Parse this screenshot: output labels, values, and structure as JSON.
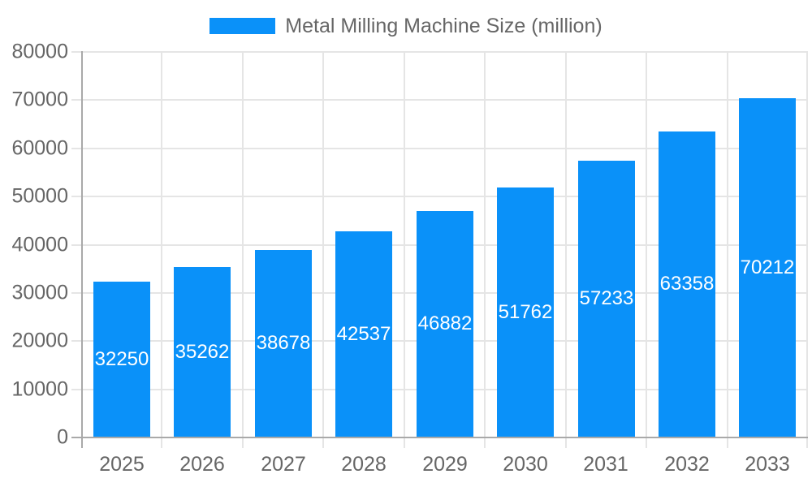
{
  "chart_data": {
    "type": "bar",
    "title": "Metal Milling Machine Size (million)",
    "legend": {
      "label": "Metal Milling Machine Size (million)",
      "position": "top"
    },
    "categories": [
      "2025",
      "2026",
      "2027",
      "2028",
      "2029",
      "2030",
      "2031",
      "2032",
      "2033"
    ],
    "values": [
      32250,
      35262,
      38678,
      42537,
      46882,
      51762,
      57233,
      63358,
      70212
    ],
    "xlabel": "",
    "ylabel": "",
    "ylim": [
      0,
      80000
    ],
    "yticks": [
      0,
      10000,
      20000,
      30000,
      40000,
      50000,
      60000,
      70000,
      80000
    ],
    "grid": true,
    "colors": {
      "bar": "#0a91f9",
      "value_label": "#ffffff",
      "axis_text": "#666666",
      "grid_line": "#e5e5e5",
      "axis_line": "#a9a9a9",
      "background": "#ffffff"
    }
  }
}
